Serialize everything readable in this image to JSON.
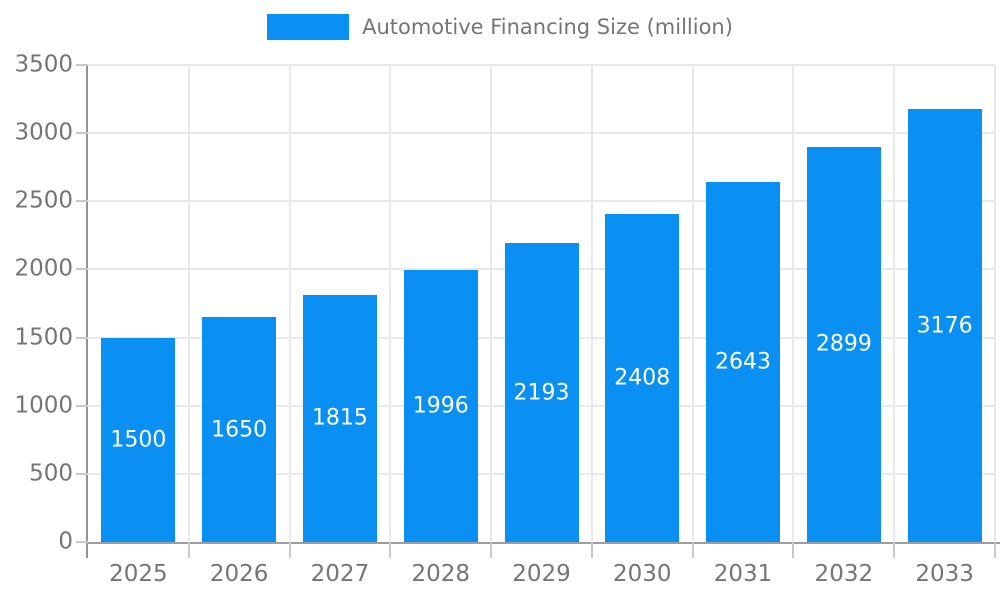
{
  "chart_data": {
    "type": "bar",
    "title": "",
    "xlabel": "",
    "ylabel": "",
    "legend_position": "top",
    "grid": true,
    "series_name": "Automotive Financing Size (million)",
    "categories": [
      "2025",
      "2026",
      "2027",
      "2028",
      "2029",
      "2030",
      "2031",
      "2032",
      "2033"
    ],
    "values": [
      1500,
      1650,
      1815,
      1996,
      2193,
      2408,
      2643,
      2899,
      3176
    ],
    "data_labels": [
      "1500",
      "1650",
      "1815",
      "1996",
      "2193",
      "2408",
      "2643",
      "2899",
      "3176"
    ],
    "ylim": [
      0,
      3500
    ],
    "yticks": [
      0,
      500,
      1000,
      1500,
      2000,
      2500,
      3000,
      3500
    ],
    "bar_color": "#0a90f2",
    "bar_label_color": "#ffffff",
    "axis_label_color": "#757575",
    "gridline_color": "#e9e9e9",
    "axis_line_color": "#9e9e9e"
  },
  "legend": {
    "label": "Automotive Financing Size (million)"
  }
}
